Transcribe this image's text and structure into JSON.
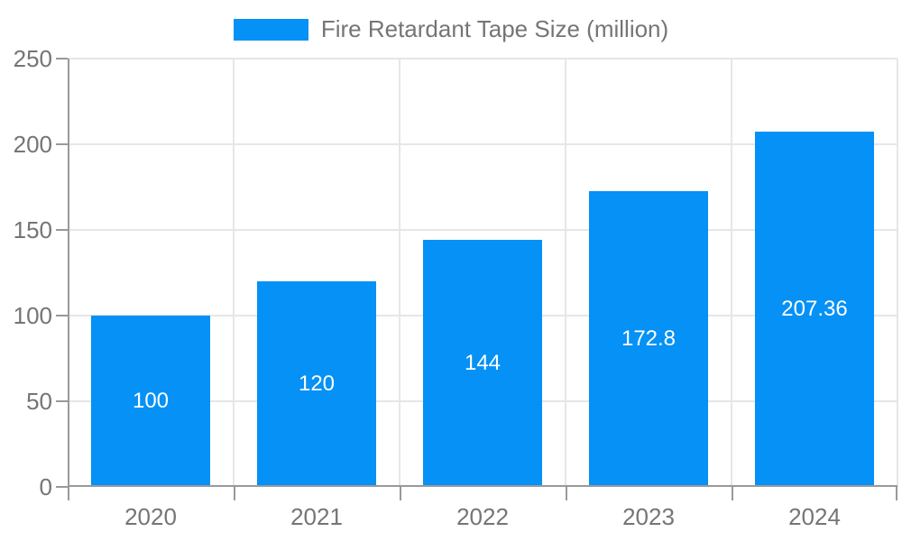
{
  "chart_data": {
    "type": "bar",
    "title": "Fire Retardant Tape Size (million)",
    "categories": [
      "2020",
      "2021",
      "2022",
      "2023",
      "2024"
    ],
    "values": [
      100,
      120,
      144,
      172.8,
      207.36
    ],
    "data_labels": [
      "100",
      "120",
      "144",
      "172.8",
      "207.36"
    ],
    "xlabel": "",
    "ylabel": "",
    "ylim": [
      0,
      250
    ],
    "yticks": [
      0,
      50,
      100,
      150,
      200,
      250
    ],
    "grid": "on",
    "legend_position": "top-center",
    "legend_entries": [
      "Fire Retardant Tape Size (million)"
    ],
    "data_label_position": "inside-center"
  },
  "colors": {
    "bar": "#0591f5",
    "bar_label": "#ffffff",
    "axis": "#999999",
    "grid": "#e6e6e6",
    "tick_label": "#757575",
    "legend_text": "#757575",
    "background": "#ffffff"
  }
}
